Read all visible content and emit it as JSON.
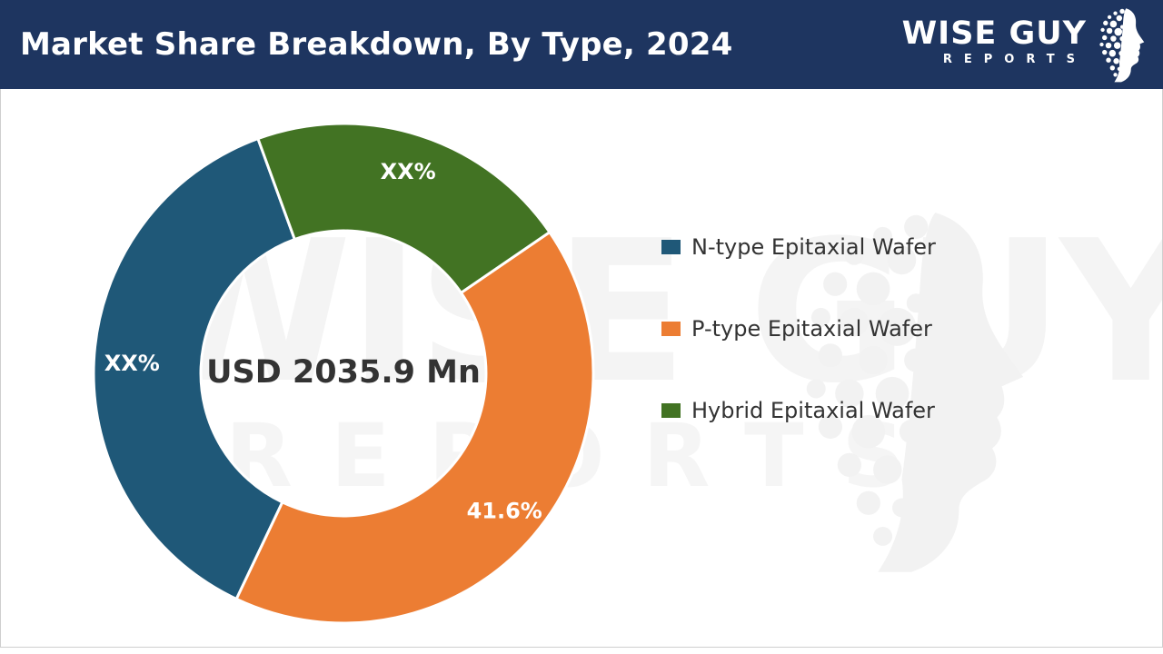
{
  "header": {
    "title": "Market Share Breakdown, By Type, 2024",
    "logo": {
      "line1": "WISE GUY",
      "line2": "REPORTS"
    }
  },
  "watermark": {
    "line1": "WISE GUY",
    "line2": "REPORTS"
  },
  "colors": {
    "header_bg": "#1e3560",
    "n_type_blue": "#1f5878",
    "p_type_orange": "#ec7d33",
    "hybrid_green": "#427323",
    "text_dark": "#333333",
    "label_white": "#ffffff"
  },
  "chart_data": {
    "type": "pie",
    "subtype": "donut",
    "title": "Market Share Breakdown, By Type, 2024",
    "center_label": "USD 2035.9 Mn",
    "start_angle_deg": 110,
    "direction": "counterclockwise",
    "inner_radius_ratio": 0.57,
    "legend_position": "right",
    "segments": [
      {
        "name": "N-type Epitaxial Wafer",
        "value_pct": 37.4,
        "label": "XX%",
        "color": "#1f5878"
      },
      {
        "name": "P-type Epitaxial Wafer",
        "value_pct": 41.6,
        "label": "41.6%",
        "color": "#ec7d33"
      },
      {
        "name": "Hybrid Epitaxial Wafer",
        "value_pct": 21.0,
        "label": "XX%",
        "color": "#427323"
      }
    ]
  }
}
